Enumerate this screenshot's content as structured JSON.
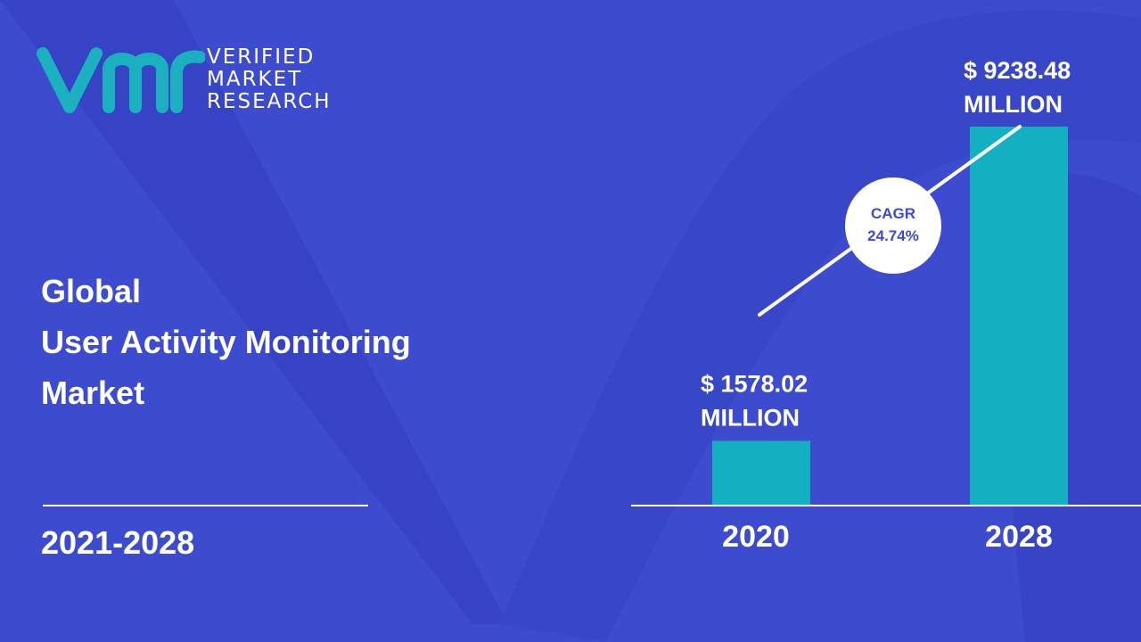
{
  "brand": {
    "line1": "VERIFIED",
    "line2": "MARKET",
    "line3": "RESEARCH",
    "color": "#1ab0c0"
  },
  "title": {
    "line1": "Global",
    "line2": "User Activity Monitoring",
    "line3": "Market"
  },
  "period": "2021-2028",
  "colors": {
    "background": "#3d4bcf",
    "bar": "#12b0c0",
    "text": "#ffffff",
    "cagr_text": "#3d4bcf"
  },
  "chart_data": {
    "type": "bar",
    "categories": [
      "2020",
      "2028"
    ],
    "values": [
      1578.02,
      9238.48
    ],
    "value_labels": [
      [
        "$ 1578.02",
        "MILLION"
      ],
      [
        "$ 9238.48",
        "MILLION"
      ]
    ],
    "annotation": {
      "label": "CAGR",
      "value": "24.74%"
    },
    "ylim": [
      0,
      9238.48
    ],
    "grid": false,
    "legend": "none"
  }
}
